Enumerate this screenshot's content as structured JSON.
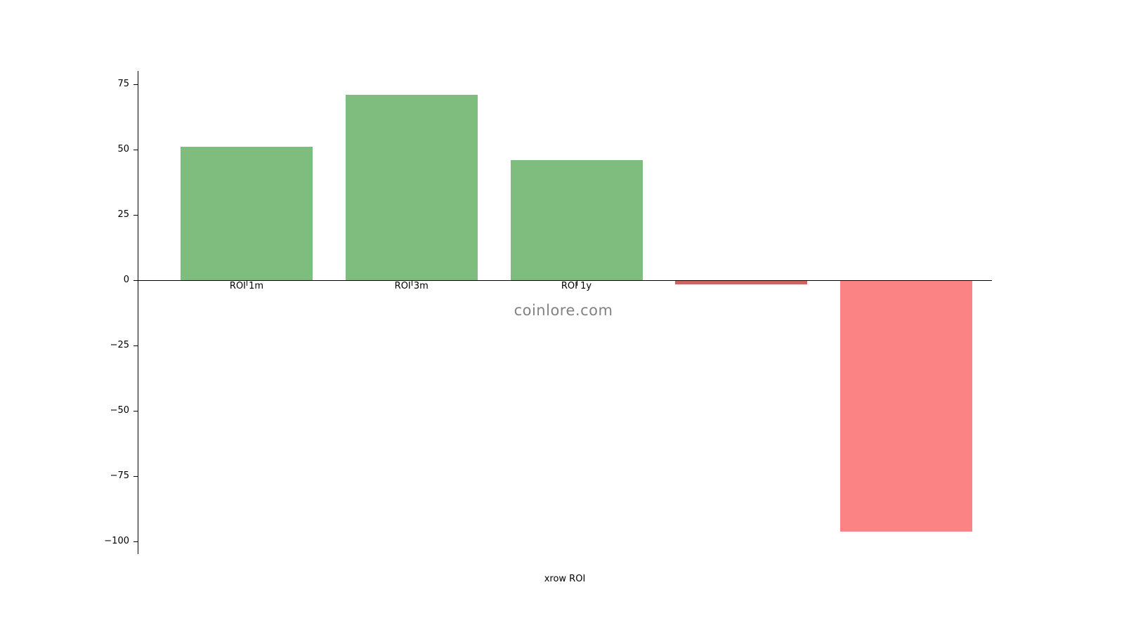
{
  "watermark": "coinlore.com",
  "chart_data": {
    "type": "bar",
    "title": "",
    "xlabel": "xrow ROI",
    "ylabel": "",
    "categories": [
      "ROI 1m",
      "ROI 3m",
      "ROI 1y",
      "",
      ""
    ],
    "values": [
      51,
      71,
      46,
      -1.4,
      -96
    ],
    "bar_colors": [
      "#7ebd7d",
      "#7ebd7d",
      "#7ebd7d",
      "#cb6562",
      "#fc8383"
    ],
    "yticks": [
      75,
      50,
      25,
      0,
      -25,
      -50,
      -75,
      -100
    ],
    "ylim": [
      -105,
      80
    ],
    "grid": false,
    "legend": "none",
    "axis_color": "#000000",
    "watermark_color": "#828282"
  }
}
